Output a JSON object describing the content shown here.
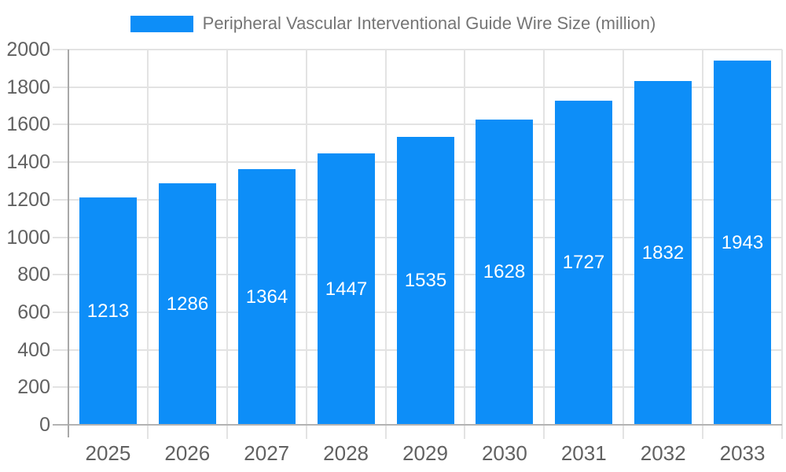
{
  "chart_data": {
    "type": "bar",
    "title": "Peripheral Vascular Interventional Guide Wire Size (million)",
    "categories": [
      "2025",
      "2026",
      "2027",
      "2028",
      "2029",
      "2030",
      "2031",
      "2032",
      "2033"
    ],
    "values": [
      1213,
      1286,
      1364,
      1447,
      1535,
      1628,
      1727,
      1832,
      1943
    ],
    "xlabel": "",
    "ylabel": "",
    "ylim": [
      0,
      2000
    ],
    "ytick_step": 200,
    "ytick_labels": [
      "0",
      "200",
      "400",
      "600",
      "800",
      "1000",
      "1200",
      "1400",
      "1600",
      "1800",
      "2000"
    ],
    "grid": true,
    "legend_position": "top",
    "value_labels": "inside-center"
  },
  "colors": {
    "bar": "#0d8ef8",
    "bar_label": "#ffffff",
    "grid": "#e3e3e3",
    "axis_y_line": "#a8a8a8",
    "axis_x_line": "#b3b3b3",
    "tick_text": "#616161",
    "title_text": "#757575",
    "background": "#ffffff"
  }
}
